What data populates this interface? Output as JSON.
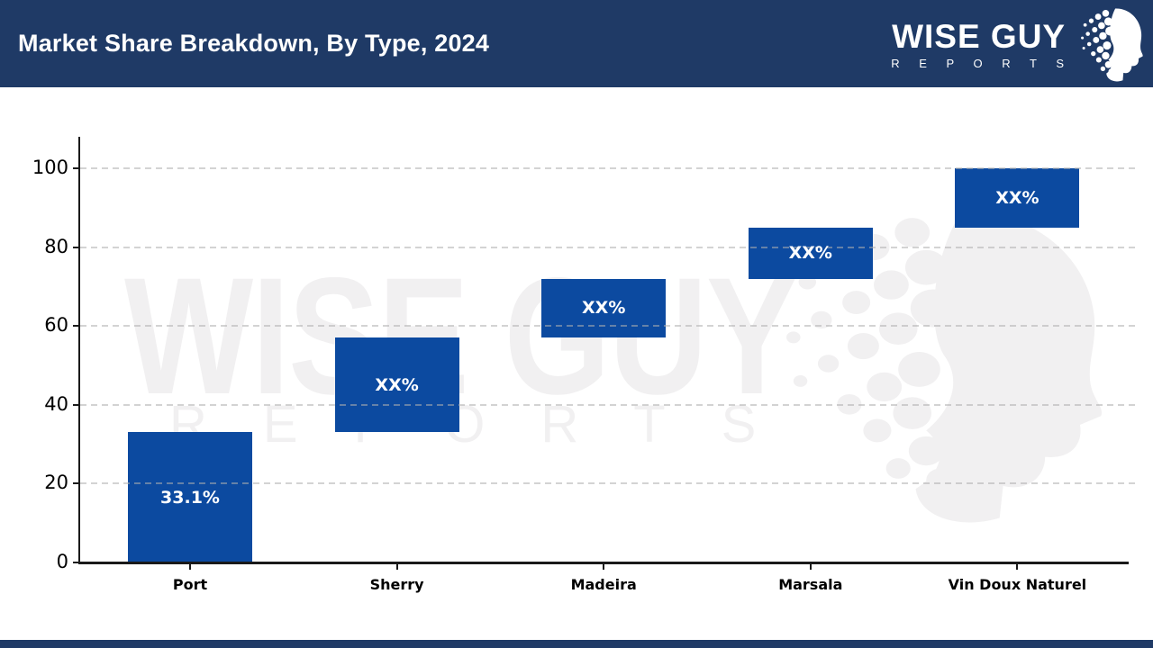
{
  "header": {
    "title": "Market Share Breakdown, By Type, 2024",
    "brand": {
      "name": "WISE GUY",
      "sub_spaced": "R E P O R T S"
    }
  },
  "watermark": {
    "line1": "WISE GUY",
    "line2": "REPORTS"
  },
  "colors": {
    "header_bg": "#1f3a66",
    "bar_fill": "#0c4aa0",
    "bar_label": "#ffffff",
    "gridline": "#d9d9d9",
    "axis": "#1a1a1a",
    "watermark": "#f1f0f1"
  },
  "chart_data": {
    "type": "bar",
    "subtype": "waterfall",
    "title": "Market Share Breakdown, By Type, 2024",
    "xlabel": "",
    "ylabel": "",
    "categories": [
      "Port",
      "Sherry",
      "Madeira",
      "Marsala",
      "Vin Doux Naturel"
    ],
    "segments": [
      {
        "category": "Port",
        "start": 0,
        "end": 33.1,
        "label": "33.1%"
      },
      {
        "category": "Sherry",
        "start": 33.1,
        "end": 57,
        "label": "XX%"
      },
      {
        "category": "Madeira",
        "start": 57,
        "end": 72,
        "label": "XX%"
      },
      {
        "category": "Marsala",
        "start": 72,
        "end": 85,
        "label": "XX%"
      },
      {
        "category": "Vin Doux Naturel",
        "start": 85,
        "end": 100,
        "label": "XX%"
      }
    ],
    "y_ticks": [
      0,
      20,
      40,
      60,
      80,
      100
    ],
    "ylim": [
      0,
      105
    ],
    "grid": "dashed horizontal, drawn above bars",
    "legend": "none"
  }
}
